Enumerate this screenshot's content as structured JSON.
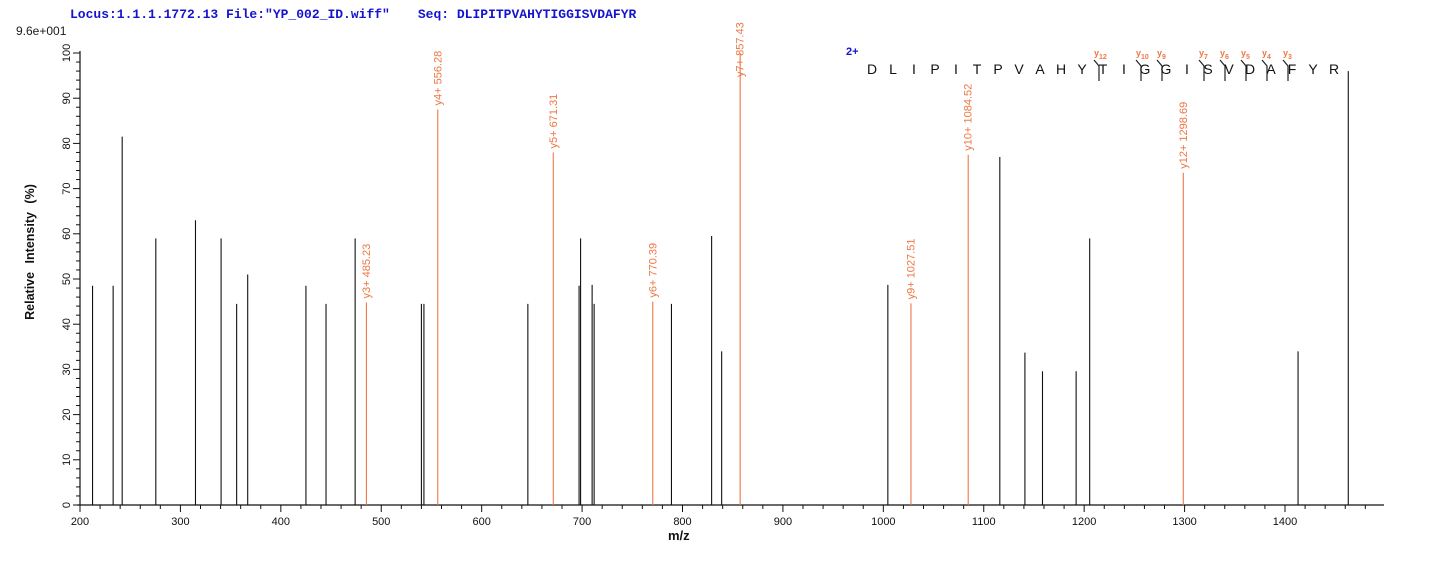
{
  "header": {
    "locus_file": "Locus:1.1.1.1772.13 File:\"YP_002_ID.wiff\"",
    "seq": "Seq: DLIPITPVAHYTIGGISVDAFYR"
  },
  "max_intensity_label": "9.6e+001",
  "colors": {
    "annotation_orange": "#EE7744",
    "header_blue": "#1414CF",
    "axis_black": "#111111"
  },
  "peptide": {
    "charge": "2+",
    "residues": [
      "D",
      "L",
      "I",
      "P",
      "I",
      "T",
      "P",
      "V",
      "A",
      "H",
      "Y",
      "T",
      "I",
      "G",
      "G",
      "I",
      "S",
      "V",
      "D",
      "A",
      "F",
      "Y",
      "R"
    ],
    "fragment_markers": [
      {
        "index": 11,
        "ion": "y",
        "sub": "12"
      },
      {
        "index": 13,
        "ion": "y",
        "sub": "10"
      },
      {
        "index": 14,
        "ion": "y",
        "sub": "9"
      },
      {
        "index": 16,
        "ion": "y",
        "sub": "7"
      },
      {
        "index": 17,
        "ion": "y",
        "sub": "6"
      },
      {
        "index": 18,
        "ion": "y",
        "sub": "5"
      },
      {
        "index": 19,
        "ion": "y",
        "sub": "4"
      },
      {
        "index": 20,
        "ion": "y",
        "sub": "3"
      }
    ]
  },
  "chart_data": {
    "type": "bar",
    "subtype": "ms2-stick-spectrum",
    "xlabel": "m/z",
    "ylabel": "Relative Intensity (%)",
    "xlim": [
      197,
      1498
    ],
    "ylim": [
      0,
      100
    ],
    "grid": false,
    "x_major_ticks": [
      200,
      300,
      400,
      500,
      600,
      700,
      800,
      900,
      1000,
      1100,
      1200,
      1300,
      1400
    ],
    "x_minor_tick_step": 20,
    "x_minor_tick_end": 1480,
    "y_major_ticks": [
      0,
      10,
      20,
      30,
      40,
      50,
      60,
      70,
      80,
      90,
      100
    ],
    "y_minor_tick_step": 2,
    "peaks": [
      {
        "mz": 212.5,
        "intensity": 48.5
      },
      {
        "mz": 233,
        "intensity": 48.5
      },
      {
        "mz": 242,
        "intensity": 81.5
      },
      {
        "mz": 275.5,
        "intensity": 59
      },
      {
        "mz": 315,
        "intensity": 63
      },
      {
        "mz": 340.5,
        "intensity": 59
      },
      {
        "mz": 356,
        "intensity": 44.5
      },
      {
        "mz": 367,
        "intensity": 51
      },
      {
        "mz": 425,
        "intensity": 48.5
      },
      {
        "mz": 445,
        "intensity": 44.5
      },
      {
        "mz": 474,
        "intensity": 59
      },
      {
        "mz": 485.23,
        "intensity": 44.8,
        "label": "y3+ 485.23"
      },
      {
        "mz": 540,
        "intensity": 44.5
      },
      {
        "mz": 542.5,
        "intensity": 44.5
      },
      {
        "mz": 556.28,
        "intensity": 87.5,
        "label": "y4+ 556.28"
      },
      {
        "mz": 646,
        "intensity": 44.5
      },
      {
        "mz": 671.31,
        "intensity": 78,
        "label": "y5+ 671.31"
      },
      {
        "mz": 697,
        "intensity": 48.5
      },
      {
        "mz": 698.5,
        "intensity": 59
      },
      {
        "mz": 710,
        "intensity": 48.7
      },
      {
        "mz": 712,
        "intensity": 44.5
      },
      {
        "mz": 770.39,
        "intensity": 45,
        "label": "y6+ 770.39"
      },
      {
        "mz": 789,
        "intensity": 44.5
      },
      {
        "mz": 829,
        "intensity": 59.5
      },
      {
        "mz": 839,
        "intensity": 34
      },
      {
        "mz": 857.43,
        "intensity": 100,
        "label": "y7+ 857.43"
      },
      {
        "mz": 1004.5,
        "intensity": 48.7
      },
      {
        "mz": 1027.51,
        "intensity": 44.6,
        "label": "y9+ 1027.51"
      },
      {
        "mz": 1084.52,
        "intensity": 77.5,
        "label": "y10+ 1084.52"
      },
      {
        "mz": 1116,
        "intensity": 77
      },
      {
        "mz": 1141,
        "intensity": 33.7
      },
      {
        "mz": 1158.5,
        "intensity": 29.6
      },
      {
        "mz": 1192,
        "intensity": 29.6
      },
      {
        "mz": 1205.5,
        "intensity": 59
      },
      {
        "mz": 1298.69,
        "intensity": 73.5,
        "label": "y12+ 1298.69"
      },
      {
        "mz": 1413,
        "intensity": 34
      },
      {
        "mz": 1463,
        "intensity": 96
      }
    ]
  }
}
